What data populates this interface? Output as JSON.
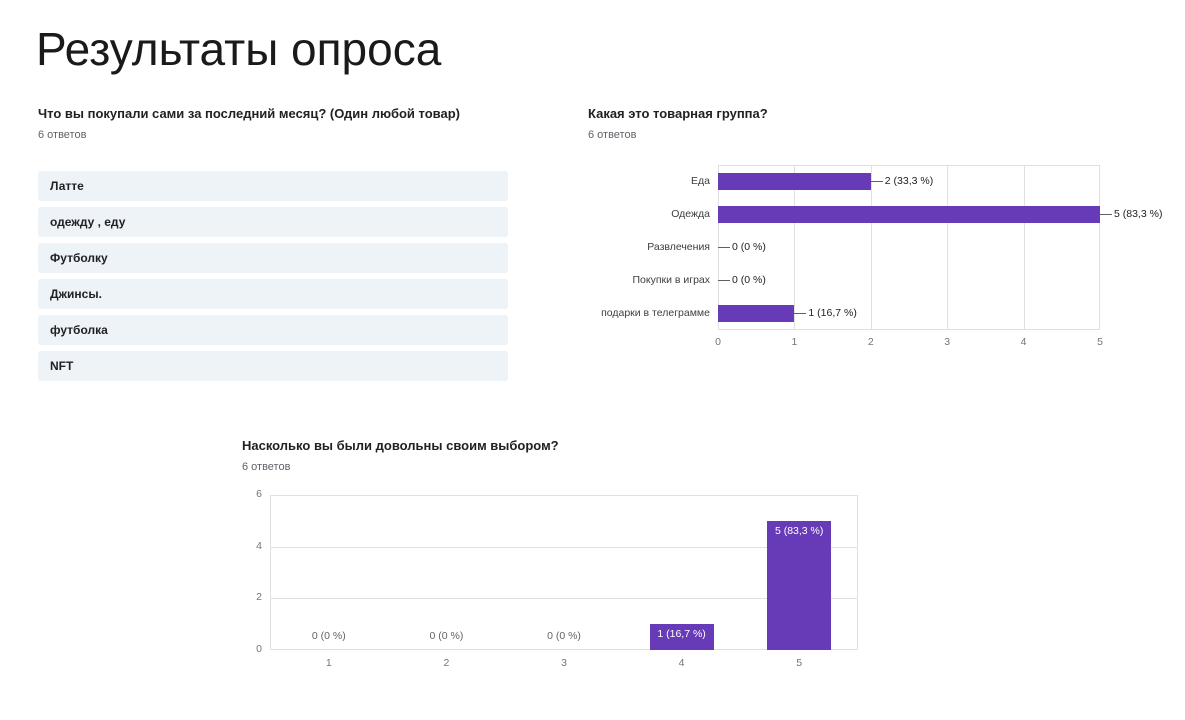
{
  "page_title": "Результаты опроса",
  "colors": {
    "accent": "#673ab7",
    "grid": "#e0e0e0",
    "answer_background": "#eef3f8"
  },
  "text_question": {
    "title": "Что вы покупали сами за последний месяц? (Один любой товар)",
    "responses_count": "6 ответов",
    "answers": [
      "Латте",
      "одежду , еду",
      "Футболку",
      "Джинсы.",
      "футболка",
      "NFT"
    ]
  },
  "chart_data": [
    {
      "type": "bar",
      "orientation": "horizontal",
      "title": "Какая это товарная группа?",
      "subtitle": "6 ответов",
      "categories": [
        "Еда",
        "Одежда",
        "Развлечения",
        "Покупки в играх",
        "подарки в телеграмме"
      ],
      "values": [
        2,
        5,
        0,
        0,
        1
      ],
      "value_labels": [
        "2 (33,3 %)",
        "5 (83,3 %)",
        "0 (0 %)",
        "0 (0 %)",
        "1 (16,7 %)"
      ],
      "axis_range": [
        0,
        5
      ],
      "axis_ticks": [
        0,
        1,
        2,
        3,
        4,
        5
      ],
      "bar_color": "#673ab7",
      "grid": true,
      "legend": false
    },
    {
      "type": "bar",
      "orientation": "vertical",
      "title": "Насколько вы были довольны своим выбором?",
      "subtitle": "6 ответов",
      "categories": [
        "1",
        "2",
        "3",
        "4",
        "5"
      ],
      "values": [
        0,
        0,
        0,
        1,
        5
      ],
      "value_labels": [
        "0 (0 %)",
        "0 (0 %)",
        "0 (0 %)",
        "1 (16,7 %)",
        "5 (83,3 %)"
      ],
      "axis_range": [
        0,
        6
      ],
      "axis_ticks": [
        0,
        2,
        4,
        6
      ],
      "bar_color": "#673ab7",
      "grid": true,
      "legend": false
    }
  ]
}
